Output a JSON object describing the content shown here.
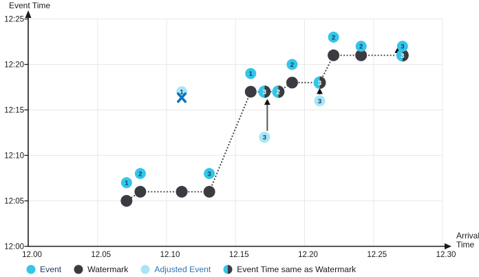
{
  "chart_data": {
    "type": "scatter",
    "x_axis": {
      "label": "Arrival Time",
      "range": [
        12.0,
        12.3
      ],
      "ticks": [
        {
          "value": 12.0,
          "label": "12.00"
        },
        {
          "value": 12.05,
          "label": "12.05"
        },
        {
          "value": 12.1,
          "label": "12.10"
        },
        {
          "value": 12.15,
          "label": "12.15"
        },
        {
          "value": 12.2,
          "label": "12.20"
        },
        {
          "value": 12.25,
          "label": "12.25"
        },
        {
          "value": 12.3,
          "label": "12.30"
        }
      ]
    },
    "y_axis": {
      "label": "Event Time",
      "range_minutes": [
        0,
        25
      ],
      "ticks": [
        {
          "minutes": 0,
          "label": "12:00"
        },
        {
          "minutes": 5,
          "label": "12:05"
        },
        {
          "minutes": 10,
          "label": "12:10"
        },
        {
          "minutes": 15,
          "label": "12:15"
        },
        {
          "minutes": 20,
          "label": "12:20"
        },
        {
          "minutes": 25,
          "label": "12:25"
        }
      ]
    },
    "events": [
      {
        "label": "1",
        "arrival": 12.07,
        "event_time": "12:07",
        "minutes": 7
      },
      {
        "label": "2",
        "arrival": 12.08,
        "event_time": "12:08",
        "minutes": 8
      },
      {
        "label": "3",
        "arrival": 12.13,
        "event_time": "12:08",
        "minutes": 8
      },
      {
        "label": "1",
        "arrival": 12.16,
        "event_time": "12:19",
        "minutes": 19
      },
      {
        "label": "2",
        "arrival": 12.19,
        "event_time": "12:20",
        "minutes": 20
      },
      {
        "label": "2",
        "arrival": 12.22,
        "event_time": "12:23",
        "minutes": 23
      },
      {
        "label": "2",
        "arrival": 12.24,
        "event_time": "12:22",
        "minutes": 22
      },
      {
        "label": "3",
        "arrival": 12.27,
        "event_time": "12:22",
        "minutes": 22
      }
    ],
    "watermarks": [
      {
        "arrival": 12.07,
        "watermark": "12:05",
        "minutes": 5
      },
      {
        "arrival": 12.08,
        "watermark": "12:06",
        "minutes": 6
      },
      {
        "arrival": 12.11,
        "watermark": "12:06",
        "minutes": 6
      },
      {
        "arrival": 12.13,
        "watermark": "12:06",
        "minutes": 6
      },
      {
        "arrival": 12.16,
        "watermark": "12:17",
        "minutes": 17
      },
      {
        "arrival": 12.19,
        "watermark": "12:18",
        "minutes": 18
      },
      {
        "arrival": 12.22,
        "watermark": "12:21",
        "minutes": 21
      },
      {
        "arrival": 12.24,
        "watermark": "12:21",
        "minutes": 21
      }
    ],
    "events_same_as_watermark": [
      {
        "label": "3",
        "arrival": 12.17,
        "event_time": "12:17",
        "minutes": 17
      },
      {
        "label": "2",
        "arrival": 12.18,
        "event_time": "12:17",
        "minutes": 17
      },
      {
        "label": "3",
        "arrival": 12.21,
        "event_time": "12:18",
        "minutes": 18
      },
      {
        "label": "3",
        "arrival": 12.27,
        "event_time": "12:21",
        "minutes": 21
      }
    ],
    "adjusted_events": [
      {
        "label": "3",
        "arrival": 12.17,
        "original_event_time": "12:12",
        "minutes": 12
      },
      {
        "label": "3",
        "arrival": 12.21,
        "original_event_time": "12:16",
        "minutes": 16
      }
    ],
    "dropped_events": [
      {
        "label": "1",
        "arrival": 12.11,
        "event_time": "12:17",
        "minutes": 17
      }
    ],
    "watermark_line": [
      [
        12.07,
        5
      ],
      [
        12.08,
        6
      ],
      [
        12.11,
        6
      ],
      [
        12.13,
        6
      ],
      [
        12.16,
        17
      ],
      [
        12.18,
        17
      ],
      [
        12.19,
        18
      ],
      [
        12.21,
        18
      ],
      [
        12.22,
        21
      ],
      [
        12.24,
        21
      ],
      [
        12.27,
        21
      ]
    ],
    "adjustment_arrows": [
      {
        "x": 12.172,
        "from_minutes": 12.7,
        "to_minutes": 16.2
      },
      {
        "x": 12.21,
        "from_minutes": 16.7,
        "to_minutes": 17.4
      },
      {
        "x": 12.2665,
        "from_minutes": 21.1,
        "to_minutes": 21.9
      }
    ],
    "legend": [
      {
        "label": "Event",
        "marker": "event",
        "text_color": "#1F3864"
      },
      {
        "label": "Watermark",
        "marker": "watermark",
        "text_color": "#1A1A1A"
      },
      {
        "label": "Adjusted Event",
        "marker": "adjusted_event",
        "text_color": "#2E75B6"
      },
      {
        "label": "Event Time same as Watermark",
        "marker": "half",
        "text_color": "#1A1A1A"
      }
    ],
    "colors": {
      "event": "#33C6E8",
      "watermark": "#3B3B41",
      "adjusted_event": "#A8E6F7",
      "numeral_on_event": "#123C63",
      "numeral_on_dark": "#FFFFFF",
      "dropped_x": "#1273BD",
      "grid": "#E8E8E8",
      "axis": "#1A1A1A",
      "watermark_line": "#4A4A4A",
      "arrow": "#555555"
    }
  }
}
